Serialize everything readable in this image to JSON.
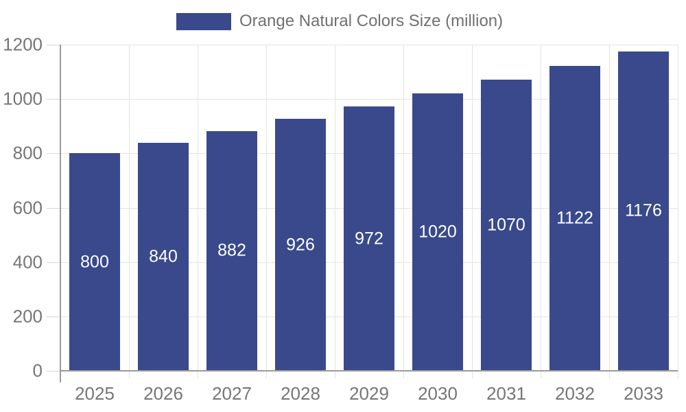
{
  "legend": {
    "label": "Orange Natural Colors Size (million)"
  },
  "chart_data": {
    "type": "bar",
    "title": "",
    "xlabel": "",
    "ylabel": "",
    "categories": [
      "2025",
      "2026",
      "2027",
      "2028",
      "2029",
      "2030",
      "2031",
      "2032",
      "2033"
    ],
    "series": [
      {
        "name": "Orange Natural Colors Size (million)",
        "values": [
          800,
          840,
          882,
          926,
          972,
          1020,
          1070,
          1122,
          1176
        ]
      }
    ],
    "ylim": [
      0,
      1200
    ],
    "yticks": [
      0,
      200,
      400,
      600,
      800,
      1000,
      1200
    ],
    "grid": true,
    "legend_position": "top-center",
    "value_label_position": "inside-center",
    "colors": {
      "bar": "#39498C",
      "grid": "#e3e3e3",
      "axis": "#9a9a9a",
      "tick": "#d6d6d6",
      "tick_label": "#767676",
      "legend_text": "#707070",
      "value_label": "#ffffff",
      "background": "#ffffff"
    }
  }
}
